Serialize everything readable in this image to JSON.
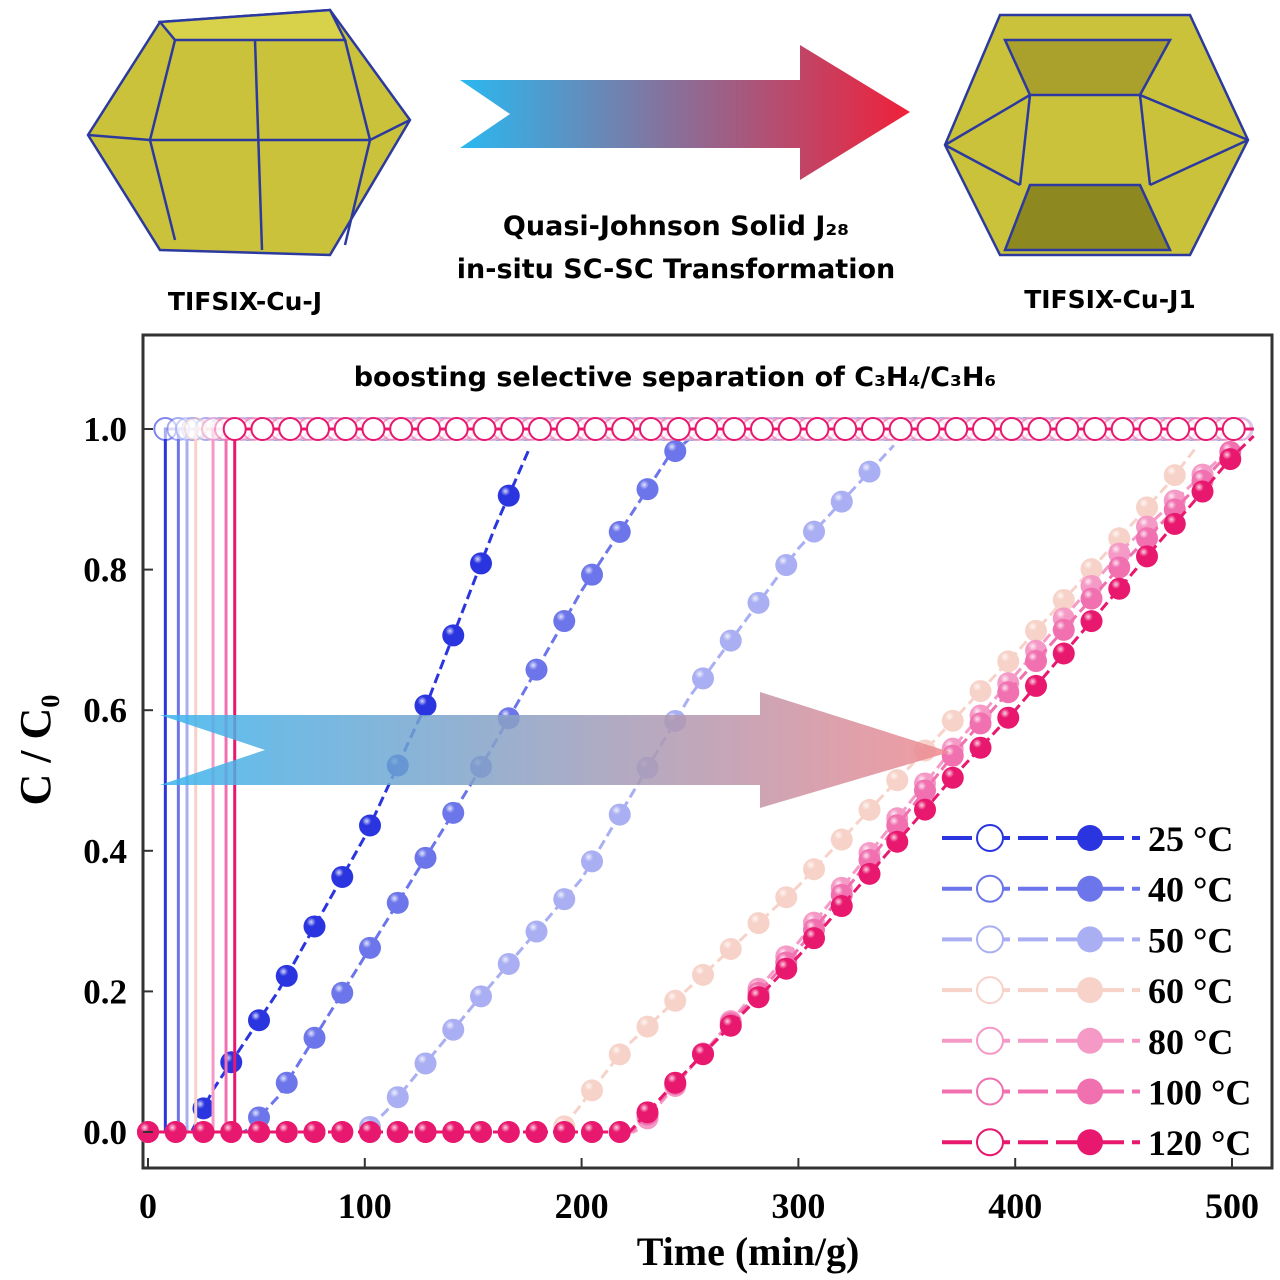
{
  "header": {
    "left_label": "TIFSIX-Cu-J",
    "right_label": "TIFSIX-Cu-J1",
    "caption_line1": "Quasi-Johnson Solid J₂₈",
    "caption_line2": "in-situ SC-SC Transformation",
    "arrow_colors": [
      "#2ab8f0",
      "#f0203a"
    ]
  },
  "chart_data": {
    "type": "scatter",
    "title": "boosting selective separation of C₃H₄/C₃H₆",
    "xlabel": "Time (min/g)",
    "ylabel": "C / C₀",
    "xlim": [
      0,
      510
    ],
    "ylim": [
      0,
      1.05
    ],
    "xticks": [
      "0",
      "100",
      "200",
      "300",
      "400",
      "500"
    ],
    "yticks": [
      "0.0",
      "0.2",
      "0.4",
      "0.6",
      "0.8",
      "1.0"
    ],
    "legend_position": "bottom-right",
    "grid": false,
    "series": [
      {
        "name": "25 °C",
        "color": "#2a35e0",
        "open_breakthrough": 8,
        "filled": [
          [
            0,
            0
          ],
          [
            20,
            0
          ],
          [
            30,
            0.06
          ],
          [
            60,
            0.2
          ],
          [
            100,
            0.42
          ],
          [
            130,
            0.62
          ],
          [
            160,
            0.86
          ],
          [
            177,
            0.98
          ]
        ]
      },
      {
        "name": "40 °C",
        "color": "#6c76ea",
        "open_breakthrough": 14,
        "filled": [
          [
            0,
            0
          ],
          [
            45,
            0
          ],
          [
            60,
            0.05
          ],
          [
            100,
            0.25
          ],
          [
            150,
            0.5
          ],
          [
            200,
            0.77
          ],
          [
            240,
            0.96
          ],
          [
            255,
            1.0
          ]
        ]
      },
      {
        "name": "50 °C",
        "color": "#a9aff2",
        "open_breakthrough": 18,
        "filled": [
          [
            0,
            0
          ],
          [
            100,
            0
          ],
          [
            110,
            0.03
          ],
          [
            150,
            0.18
          ],
          [
            200,
            0.36
          ],
          [
            250,
            0.62
          ],
          [
            300,
            0.83
          ],
          [
            345,
            0.98
          ]
        ]
      },
      {
        "name": "60 °C",
        "color": "#f7d2c8",
        "open_breakthrough": 22,
        "filled": [
          [
            0,
            0
          ],
          [
            190,
            0
          ],
          [
            220,
            0.12
          ],
          [
            300,
            0.35
          ],
          [
            400,
            0.68
          ],
          [
            470,
            0.92
          ],
          [
            485,
            0.98
          ]
        ]
      },
      {
        "name": "80 °C",
        "color": "#f59ac6",
        "open_breakthrough": 30,
        "filled": [
          [
            0,
            0
          ],
          [
            225,
            0
          ],
          [
            300,
            0.27
          ],
          [
            375,
            0.56
          ],
          [
            450,
            0.83
          ],
          [
            495,
            0.96
          ]
        ]
      },
      {
        "name": "100 °C",
        "color": "#f070b0",
        "open_breakthrough": 36,
        "filled": [
          [
            0,
            0
          ],
          [
            223,
            0
          ],
          [
            300,
            0.26
          ],
          [
            375,
            0.55
          ],
          [
            450,
            0.81
          ],
          [
            500,
            0.97
          ]
        ]
      },
      {
        "name": "120 °C",
        "color": "#e8186e",
        "open_breakthrough": 40,
        "filled": [
          [
            0,
            0
          ],
          [
            222,
            0
          ],
          [
            240,
            0.06
          ],
          [
            300,
            0.25
          ],
          [
            370,
            0.5
          ],
          [
            400,
            0.6
          ],
          [
            450,
            0.78
          ],
          [
            500,
            0.96
          ],
          [
            510,
            0.99
          ]
        ]
      }
    ]
  }
}
